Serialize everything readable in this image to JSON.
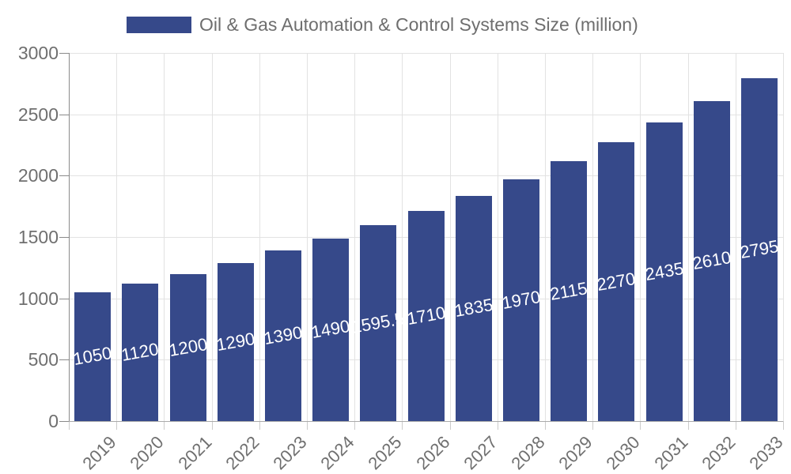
{
  "legend": {
    "label": "Oil & Gas Automation & Control Systems Size (million)"
  },
  "colors": {
    "bar": "#36498a",
    "bar_label": "#ffffff",
    "grid": "#e2e2e2",
    "axis_x": "#aaaaaa",
    "axis_y": "#8a8a8a",
    "ytick": "#8a8a8a",
    "xtick": "#cccccc",
    "tick_label": "#6f6f6f",
    "legend_text": "#6e6e6e"
  },
  "chart_data": {
    "type": "bar",
    "title": "Oil & Gas Automation & Control Systems Size (million)",
    "xlabel": "",
    "ylabel": "",
    "categories": [
      "2019",
      "2020",
      "2021",
      "2022",
      "2023",
      "2024",
      "2025",
      "2026",
      "2027",
      "2028",
      "2029",
      "2030",
      "2031",
      "2032",
      "2033"
    ],
    "values": [
      1050,
      1120,
      1200,
      1290,
      1390,
      1490,
      1595.5,
      1710,
      1835,
      1970,
      2115,
      2270,
      2435,
      2610,
      2795
    ],
    "value_labels": [
      "1050",
      "1120",
      "1200",
      "1290",
      "1390",
      "1490",
      "1595.5",
      "1710",
      "1835",
      "1970",
      "2115",
      "2270",
      "2435",
      "2610",
      "2795"
    ],
    "ylim": [
      0,
      3000
    ],
    "yticks": [
      0,
      500,
      1000,
      1500,
      2000,
      2500,
      3000
    ],
    "ytick_labels": [
      "0",
      "500",
      "1000",
      "1500",
      "2000",
      "2500",
      "3000"
    ],
    "grid": true,
    "legend_position": "top",
    "value_label_position": "middle-of-bar"
  }
}
